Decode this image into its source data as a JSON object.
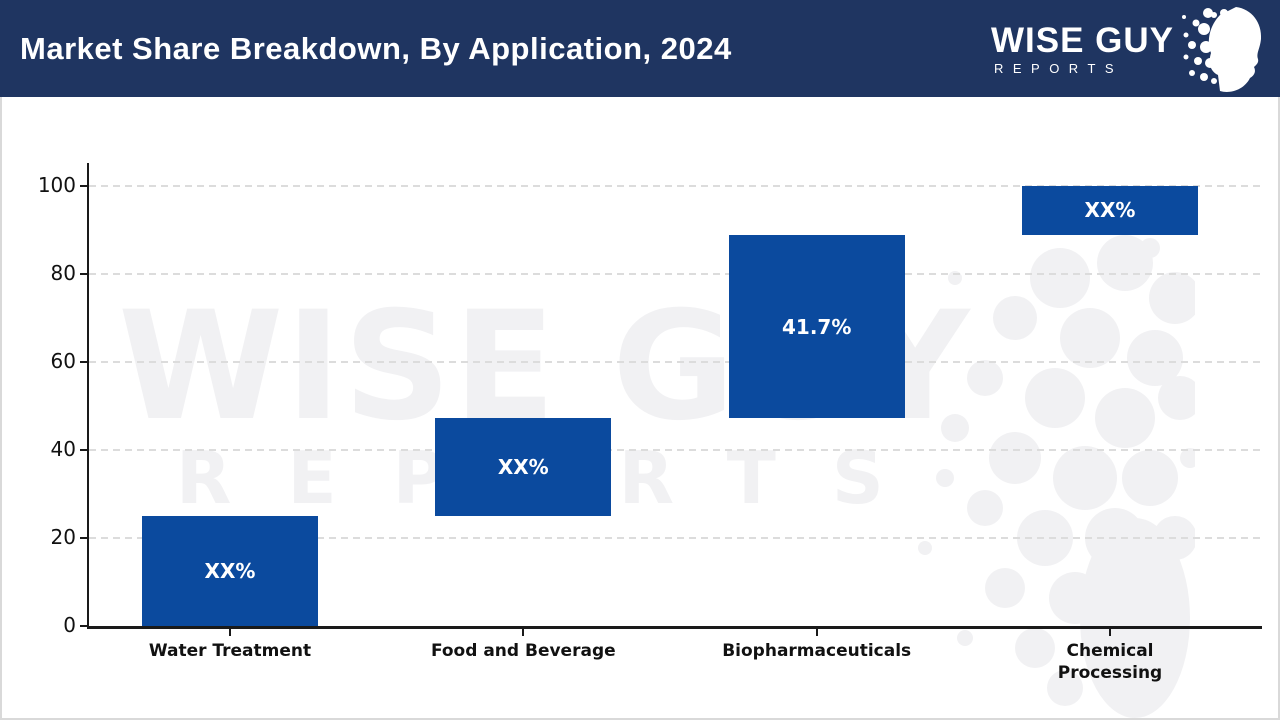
{
  "header": {
    "title": "Market Share Breakdown, By Application, 2024",
    "logo_line1": "WISE GUY",
    "logo_line2": "REPORTS"
  },
  "watermark": {
    "big_text": "WISE GUY",
    "small_text": "REPORTS"
  },
  "chart_data": {
    "type": "bar",
    "variant": "waterfall",
    "title": "Market Share Breakdown, By Application, 2024",
    "categories": [
      "Water Treatment",
      "Food and Beverage",
      "Biopharmaceuticals",
      "Chemical Processing"
    ],
    "xtick_label_lines": [
      [
        "Water Treatment"
      ],
      [
        "Food and Beverage"
      ],
      [
        "Biopharmaceuticals"
      ],
      [
        "Chemical",
        "Processing"
      ]
    ],
    "series": [
      {
        "name": "Market Share (%)",
        "segments": [
          {
            "category": "Water Treatment",
            "start": 0,
            "end": 25,
            "label": "XX%"
          },
          {
            "category": "Food and Beverage",
            "start": 25,
            "end": 47.2,
            "label": "XX%"
          },
          {
            "category": "Biopharmaceuticals",
            "start": 47.2,
            "end": 88.9,
            "label": "41.7%"
          },
          {
            "category": "Chemical Processing",
            "start": 88.9,
            "end": 100,
            "label": "XX%"
          }
        ]
      }
    ],
    "yticks": [
      0,
      20,
      40,
      60,
      80,
      100
    ],
    "ylim": [
      0,
      105
    ],
    "grid": "horizontal-dashed",
    "legend": "none",
    "colors": {
      "bar": "#0b4a9e",
      "bar_label_text": "#ffffff",
      "axis": "#1a1a1a",
      "grid": "#dcdcdc",
      "tick_text": "#111111",
      "header_bg": "#1f3561",
      "watermark": "#f1f1f3"
    }
  }
}
